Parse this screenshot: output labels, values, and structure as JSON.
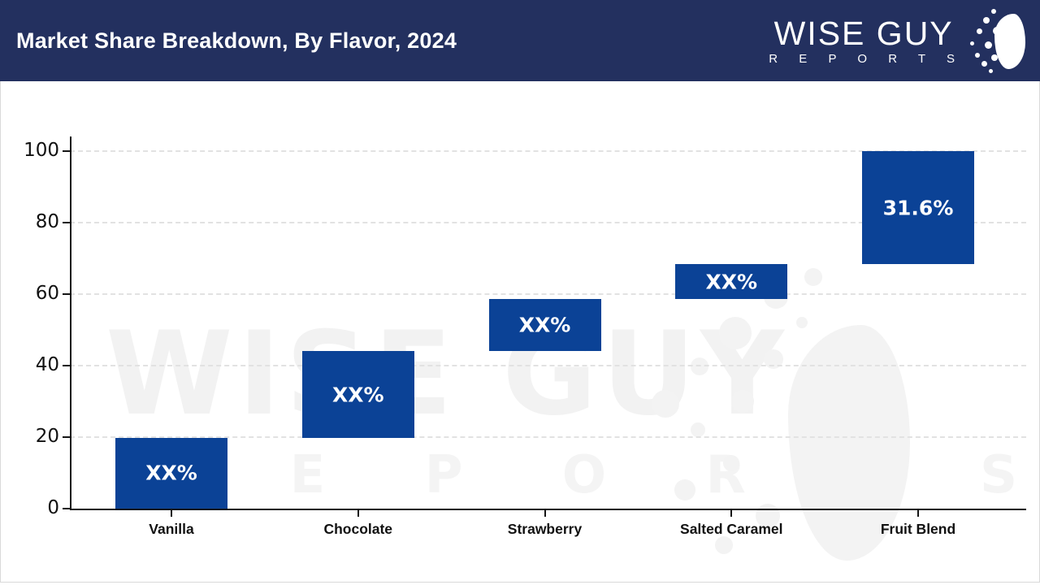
{
  "header": {
    "title": "Market Share Breakdown, By Flavor, 2024",
    "bg_color": "#23305f",
    "logo": {
      "line1": "WISE GUY",
      "line2": "R E P O R T S"
    }
  },
  "watermark": {
    "line1": "WISE GUY",
    "line2": "R E P O R T S"
  },
  "colors": {
    "bar": "#0b4296",
    "header_navy": "#23305f",
    "gridline": "#e2e2e2",
    "axis": "#151515"
  },
  "chart_data": {
    "type": "bar",
    "subtype": "waterfall",
    "title": "Market Share Breakdown, By Flavor, 2024",
    "categories": [
      "Vanilla",
      "Chocolate",
      "Strawberry",
      "Salted Caramel",
      "Fruit Blend"
    ],
    "series": [
      {
        "name": "Market Share (%)",
        "values": [
          19.8,
          24.2,
          14.6,
          9.8,
          31.6
        ],
        "cumulative_segments": [
          [
            0,
            19.8
          ],
          [
            19.8,
            44.0
          ],
          [
            44.0,
            58.6
          ],
          [
            58.6,
            68.4
          ],
          [
            68.4,
            100
          ]
        ]
      }
    ],
    "bar_labels": [
      "XX%",
      "XX%",
      "XX%",
      "XX%",
      "31.6%"
    ],
    "xlabel": "",
    "ylabel": "",
    "ylim": [
      0,
      100
    ],
    "yticks": [
      0,
      20,
      40,
      60,
      80,
      100
    ],
    "grid": "horizontal dashed",
    "legend": "none",
    "bar_color": "#0b4296"
  }
}
